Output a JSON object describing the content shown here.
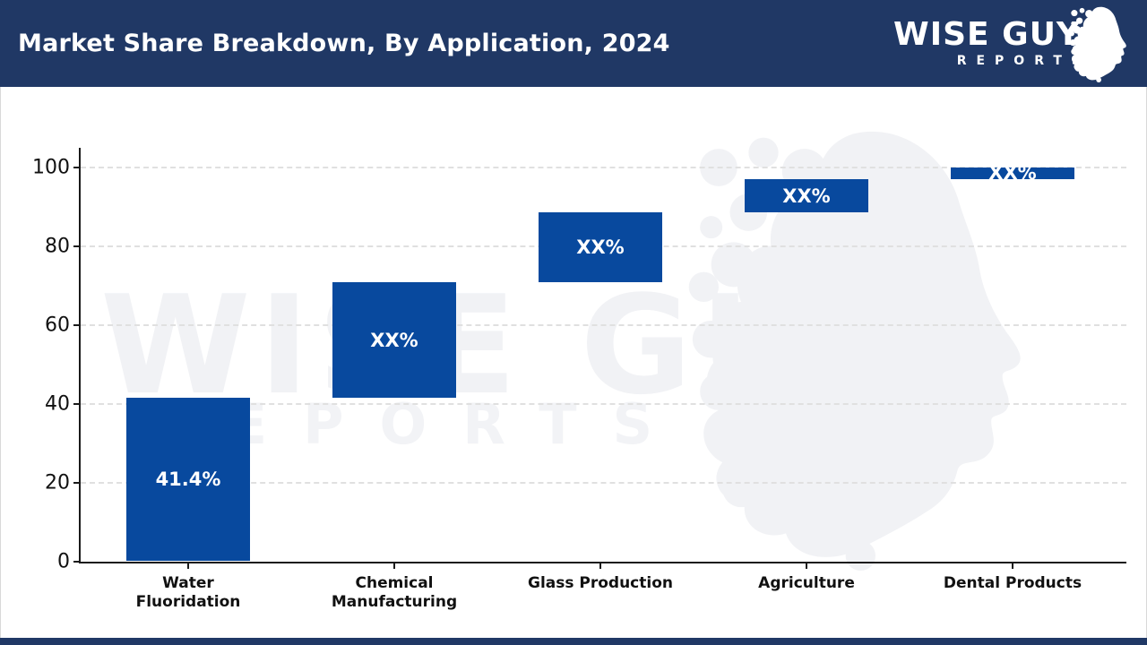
{
  "header": {
    "title": "Market Share Breakdown, By Application, 2024",
    "logo_line1": "WISE GUY",
    "logo_line2": "REPORTS"
  },
  "watermark": {
    "line1": "WISE GUY",
    "line2": "REPORTS"
  },
  "colors": {
    "header_bg": "#203865",
    "bar": "#08499e",
    "grid": "#e0e0e0",
    "watermark": "#f1f2f5"
  },
  "chart_data": {
    "type": "bar",
    "subtype": "waterfall",
    "title": "Market Share Breakdown, By Application, 2024",
    "categories": [
      "Water Fluoridation",
      "Chemical Manufacturing",
      "Glass Production",
      "Agriculture",
      "Dental Products"
    ],
    "segments": [
      {
        "category": "Water Fluoridation",
        "start": 0,
        "end": 41.4,
        "label": "41.4%"
      },
      {
        "category": "Chemical Manufacturing",
        "start": 41.4,
        "end": 70.8,
        "label": "XX%"
      },
      {
        "category": "Glass Production",
        "start": 70.8,
        "end": 88.5,
        "label": "XX%"
      },
      {
        "category": "Agriculture",
        "start": 88.5,
        "end": 96.9,
        "label": "XX%"
      },
      {
        "category": "Dental Products",
        "start": 96.9,
        "end": 100,
        "label": "XX%"
      }
    ],
    "xlabel": "",
    "ylabel": "",
    "yticks": [
      0,
      20,
      40,
      60,
      80,
      100
    ],
    "ylim": [
      0,
      105
    ],
    "grid": "horizontal-dashed",
    "legend": "none"
  }
}
